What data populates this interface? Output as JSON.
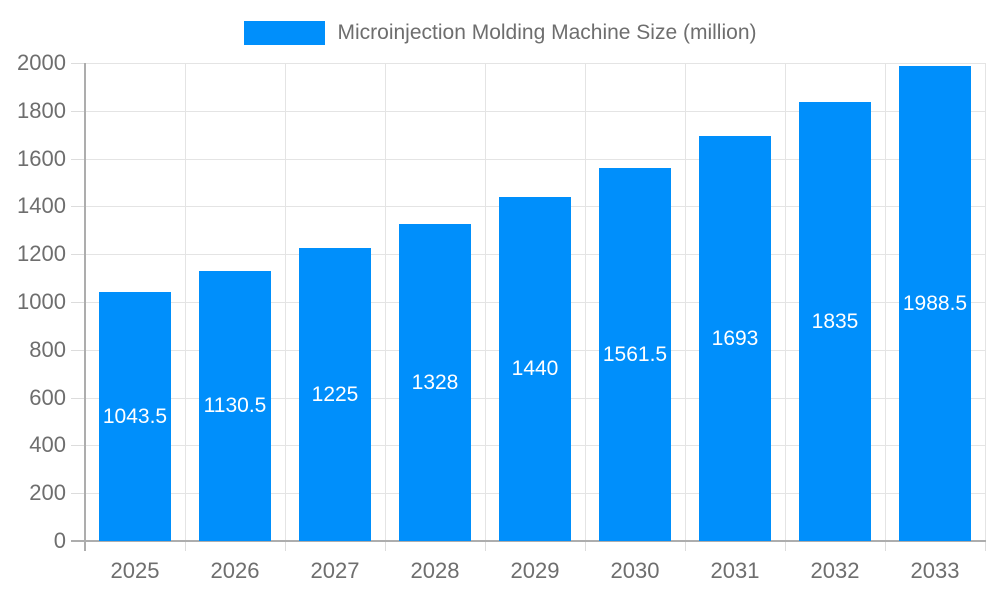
{
  "legend": {
    "label": "Microinjection Molding Machine Size (million)"
  },
  "chart_data": {
    "type": "bar",
    "title": "Microinjection Molding Machine Size (million)",
    "categories": [
      "2025",
      "2026",
      "2027",
      "2028",
      "2029",
      "2030",
      "2031",
      "2032",
      "2033"
    ],
    "series": [
      {
        "name": "Microinjection Molding Machine Size (million)",
        "values": [
          1043.5,
          1130.5,
          1225,
          1328,
          1440,
          1561.5,
          1693,
          1835,
          1988.5
        ]
      }
    ],
    "data_labels": [
      "1043.5",
      "1130.5",
      "1225",
      "1328",
      "1440",
      "1561.5",
      "1693",
      "1835",
      "1988.5"
    ],
    "xlabel": "",
    "ylabel": "",
    "ylim": [
      0,
      2000
    ],
    "ytick_step": 200,
    "ytick_labels": [
      "0",
      "200",
      "400",
      "600",
      "800",
      "1000",
      "1200",
      "1400",
      "1600",
      "1800",
      "2000"
    ],
    "grid": {
      "horizontal": true,
      "vertical": true
    },
    "legend_position": "top",
    "value_label_position": "inside-center",
    "colors": {
      "bar": "#008FFB",
      "axis_text": "#6E6E6E",
      "gridline": "#E4E4E4",
      "tick": "#DCDCDC",
      "axis_line": "#ADADAD",
      "value_label": "#FFFFFF",
      "background": "#FFFFFF"
    }
  }
}
